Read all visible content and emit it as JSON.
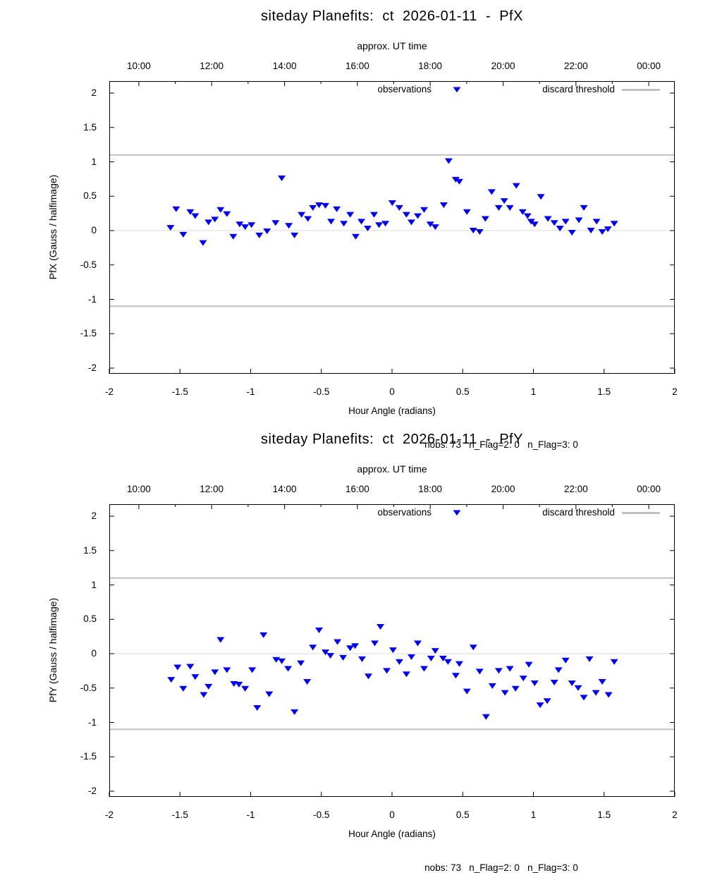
{
  "page": {
    "background": "#ffffff"
  },
  "chart_shared": {
    "x2_axis_title": "approx. UT time",
    "x_axis_title": "Hour Angle (radians)",
    "legend": {
      "observations": "observations",
      "threshold": "discard threshold"
    },
    "colors": {
      "points": "#0000ee",
      "threshold_line": "#c0c0c0",
      "zero_line": "#d8d8d8",
      "axis": "#000000",
      "background": "#ffffff"
    },
    "xlim": [
      -2,
      2
    ],
    "ylim": [
      -2.08,
      2.17
    ],
    "grid": false,
    "legend_position": "top-inside",
    "threshold_values": [
      1.1,
      -1.1
    ],
    "x_ticks": {
      "values": [
        -2,
        -1.5,
        -1,
        -0.5,
        0,
        0.5,
        1,
        1.5,
        2
      ],
      "labels": [
        "-2",
        "-1.5",
        "-1",
        "-0.5",
        "0",
        "0.5",
        "1",
        "1.5",
        "2"
      ]
    },
    "y_ticks": {
      "values": [
        2,
        1.5,
        1,
        0.5,
        0,
        -0.5,
        -1,
        -1.5,
        -2
      ],
      "labels": [
        "2",
        "1.5",
        "1",
        "0.5",
        "0",
        "-0.5",
        "-1",
        "-1.5",
        "-2"
      ]
    },
    "x2_ticks": {
      "labels": [
        "10:00",
        "12:00",
        "14:00",
        "16:00",
        "18:00",
        "20:00",
        "22:00",
        "00:00"
      ],
      "positions": [
        -1.791,
        -1.276,
        -0.76,
        -0.245,
        0.27,
        0.786,
        1.301,
        1.816
      ],
      "minor_positions": [
        -1.533,
        -1.018,
        -0.503,
        0.012,
        0.528,
        1.043,
        1.558
      ]
    }
  },
  "chart_data": [
    {
      "type": "scatter",
      "title": "siteday Planefits:  ct  2026-01-11  -  PfX",
      "ylabel": "PfX (Gauss / halfimage)",
      "xlabel": "Hour Angle (radians)",
      "x2label": "approx. UT time",
      "stats_line": "nobs: 73   n_Flag=2: 0   n_Flag=3: 0",
      "nobs": 73,
      "n_flag2": 0,
      "n_flag3": 0,
      "series": [
        {
          "name": "observations",
          "marker": "triangle-down",
          "x": [
            -1.567,
            -1.527,
            -1.477,
            -1.427,
            -1.392,
            -1.337,
            -1.298,
            -1.253,
            -1.213,
            -1.168,
            -1.123,
            -1.078,
            -1.039,
            -0.994,
            -0.939,
            -0.884,
            -0.824,
            -0.78,
            -0.73,
            -0.69,
            -0.64,
            -0.595,
            -0.56,
            -0.516,
            -0.471,
            -0.431,
            -0.391,
            -0.341,
            -0.296,
            -0.257,
            -0.217,
            -0.172,
            -0.127,
            -0.092,
            -0.047,
            0.002,
            0.052,
            0.102,
            0.137,
            0.182,
            0.227,
            0.271,
            0.306,
            0.366,
            0.401,
            0.451,
            0.476,
            0.53,
            0.575,
            0.62,
            0.66,
            0.705,
            0.755,
            0.794,
            0.834,
            0.879,
            0.924,
            0.959,
            0.984,
            1.009,
            1.053,
            1.103,
            1.148,
            1.188,
            1.228,
            1.273,
            1.322,
            1.357,
            1.407,
            1.447,
            1.487,
            1.527,
            1.572
          ],
          "y": [
            0.05,
            0.32,
            -0.05,
            0.28,
            0.22,
            -0.17,
            0.13,
            0.17,
            0.31,
            0.25,
            -0.08,
            0.1,
            0.06,
            0.09,
            -0.06,
            0.0,
            0.12,
            0.77,
            0.08,
            -0.06,
            0.24,
            0.18,
            0.34,
            0.38,
            0.37,
            0.14,
            0.32,
            0.11,
            0.24,
            -0.08,
            0.14,
            0.04,
            0.24,
            0.09,
            0.11,
            0.41,
            0.34,
            0.24,
            0.13,
            0.22,
            0.31,
            0.1,
            0.06,
            0.38,
            1.02,
            0.75,
            0.72,
            0.28,
            0.01,
            -0.01,
            0.18,
            0.57,
            0.34,
            0.44,
            0.34,
            0.66,
            0.28,
            0.22,
            0.14,
            0.1,
            0.5,
            0.18,
            0.12,
            0.04,
            0.14,
            -0.02,
            0.16,
            0.34,
            0.01,
            0.14,
            -0.01,
            0.03,
            0.11
          ]
        }
      ]
    },
    {
      "type": "scatter",
      "title": "siteday Planefits:  ct  2026-01-11  -  PfY",
      "ylabel": "PfY (Gauss / halfimage)",
      "xlabel": "Hour Angle (radians)",
      "x2label": "approx. UT time",
      "stats_line": "nobs: 73   n_Flag=2: 0   n_Flag=3: 0",
      "nobs": 73,
      "n_flag2": 0,
      "n_flag3": 0,
      "series": [
        {
          "name": "observations",
          "marker": "triangle-down",
          "x": [
            -1.562,
            -1.517,
            -1.477,
            -1.427,
            -1.392,
            -1.332,
            -1.298,
            -1.253,
            -1.213,
            -1.168,
            -1.118,
            -1.083,
            -1.039,
            -0.989,
            -0.954,
            -0.909,
            -0.869,
            -0.819,
            -0.78,
            -0.735,
            -0.69,
            -0.645,
            -0.6,
            -0.56,
            -0.516,
            -0.471,
            -0.436,
            -0.386,
            -0.346,
            -0.296,
            -0.262,
            -0.212,
            -0.167,
            -0.122,
            -0.082,
            -0.037,
            0.007,
            0.052,
            0.102,
            0.137,
            0.182,
            0.227,
            0.276,
            0.306,
            0.361,
            0.396,
            0.451,
            0.476,
            0.53,
            0.575,
            0.62,
            0.665,
            0.71,
            0.755,
            0.799,
            0.834,
            0.874,
            0.929,
            0.968,
            1.009,
            1.048,
            1.098,
            1.148,
            1.178,
            1.228,
            1.273,
            1.317,
            1.357,
            1.397,
            1.442,
            1.487,
            1.532,
            1.572
          ],
          "y": [
            -0.37,
            -0.19,
            -0.5,
            -0.18,
            -0.33,
            -0.59,
            -0.47,
            -0.26,
            0.21,
            -0.23,
            -0.43,
            -0.44,
            -0.5,
            -0.23,
            -0.78,
            0.28,
            -0.58,
            -0.08,
            -0.1,
            -0.21,
            -0.84,
            -0.13,
            -0.4,
            0.1,
            0.35,
            0.03,
            -0.02,
            0.18,
            -0.05,
            0.09,
            0.12,
            -0.07,
            -0.32,
            0.16,
            0.4,
            -0.24,
            0.06,
            -0.11,
            -0.29,
            -0.04,
            0.16,
            -0.21,
            -0.06,
            0.05,
            -0.06,
            -0.11,
            -0.31,
            -0.14,
            -0.54,
            0.1,
            -0.25,
            -0.91,
            -0.46,
            -0.24,
            -0.56,
            -0.21,
            -0.5,
            -0.35,
            -0.15,
            -0.42,
            -0.74,
            -0.68,
            -0.41,
            -0.23,
            -0.09,
            -0.42,
            -0.49,
            -0.63,
            -0.07,
            -0.56,
            -0.4,
            -0.59,
            -0.11
          ]
        }
      ]
    }
  ]
}
